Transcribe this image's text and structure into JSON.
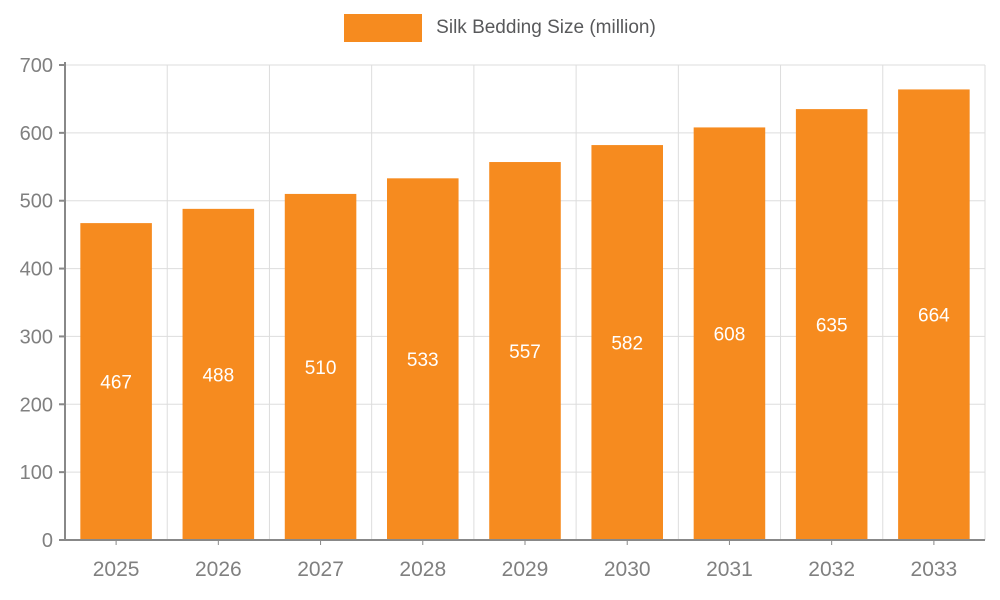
{
  "chart_data": {
    "type": "bar",
    "title": "Silk Bedding Size (million)",
    "categories": [
      "2025",
      "2026",
      "2027",
      "2028",
      "2029",
      "2030",
      "2031",
      "2032",
      "2033"
    ],
    "values": [
      467,
      488,
      510,
      533,
      557,
      582,
      608,
      635,
      664
    ],
    "xlabel": "",
    "ylabel": "",
    "ylim": [
      0,
      700
    ],
    "ytick_step": 100,
    "grid": "both",
    "legend_position": "top-center",
    "colors": {
      "bar": "#f68b1f",
      "bar_label_text": "#ffffff",
      "axis_line": "#888888",
      "grid_line": "#dddddd",
      "tick_text": "#808080",
      "legend_text": "#58595b",
      "background": "#ffffff"
    }
  }
}
